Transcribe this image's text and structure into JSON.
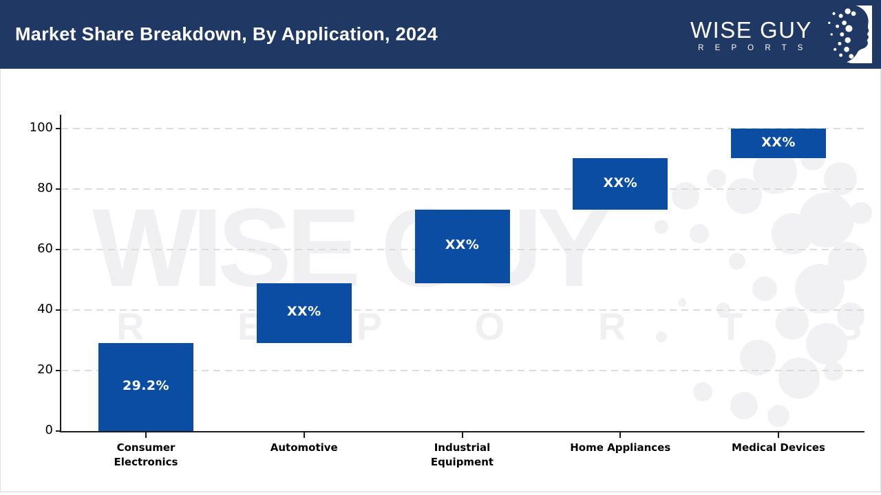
{
  "header": {
    "title": "Market Share Breakdown, By Application, 2024",
    "logo": {
      "line1": "WISE GUY",
      "line2": "R E P O R T S"
    }
  },
  "watermark": {
    "line1": "WISE GUY",
    "line2": "R E P O R T S"
  },
  "chart_data": {
    "type": "bar",
    "subtype": "waterfall",
    "title": "Market Share Breakdown, By Application, 2024",
    "xlabel": "",
    "ylabel": "",
    "categories": [
      "Consumer\nElectronics",
      "Automotive",
      "Industrial\nEquipment",
      "Home Appliances",
      "Medical Devices"
    ],
    "segments": [
      {
        "category": "Consumer Electronics",
        "start": 0,
        "end": 29.2,
        "label": "29.2%"
      },
      {
        "category": "Automotive",
        "start": 29.2,
        "end": 48.9,
        "label": "XX%"
      },
      {
        "category": "Industrial Equipment",
        "start": 48.9,
        "end": 73.2,
        "label": "XX%"
      },
      {
        "category": "Home Appliances",
        "start": 73.2,
        "end": 90.2,
        "label": "XX%"
      },
      {
        "category": "Medical Devices",
        "start": 90.2,
        "end": 100,
        "label": "XX%"
      }
    ],
    "ylim": [
      0,
      100
    ],
    "yticks": [
      0,
      20,
      40,
      60,
      80,
      100
    ],
    "grid": "horizontal-dashed",
    "legend": null,
    "colors": {
      "bar": "#0b4da2",
      "bar_label": "#ffffff",
      "header_bg": "#1f3864",
      "grid": "#dcdcdc",
      "axis": "#1a1a1a",
      "watermark": "#f0f0f2"
    }
  }
}
